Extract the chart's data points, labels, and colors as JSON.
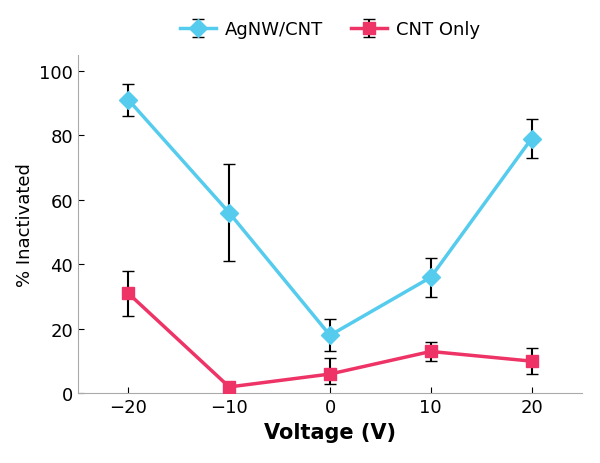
{
  "x": [
    -20,
    -10,
    0,
    10,
    20
  ],
  "agnw_cnt_y": [
    91,
    56,
    18,
    36,
    79
  ],
  "agnw_cnt_yerr_upper": [
    5,
    15,
    5,
    6,
    6
  ],
  "agnw_cnt_yerr_lower": [
    5,
    15,
    5,
    6,
    6
  ],
  "cnt_only_y": [
    31,
    2,
    6,
    13,
    10
  ],
  "cnt_only_yerr_upper": [
    7,
    1,
    5,
    3,
    4
  ],
  "cnt_only_yerr_lower": [
    7,
    1,
    3,
    3,
    4
  ],
  "agnw_color": "#55CCEE",
  "cnt_color": "#EE3366",
  "ylabel": "% Inactivated",
  "xlabel": "Voltage (V)",
  "legend_agnw": "AgNW/CNT",
  "legend_cnt": "CNT Only",
  "ylim": [
    0,
    105
  ],
  "xlim": [
    -25,
    25
  ],
  "xticks": [
    -20,
    -10,
    0,
    10,
    20
  ],
  "yticks": [
    0,
    20,
    40,
    60,
    80,
    100
  ],
  "linewidth": 2.5,
  "markersize": 9,
  "capsize": 4,
  "elinewidth": 1.5,
  "xlabel_fontsize": 15,
  "ylabel_fontsize": 13,
  "tick_fontsize": 13,
  "legend_fontsize": 13
}
